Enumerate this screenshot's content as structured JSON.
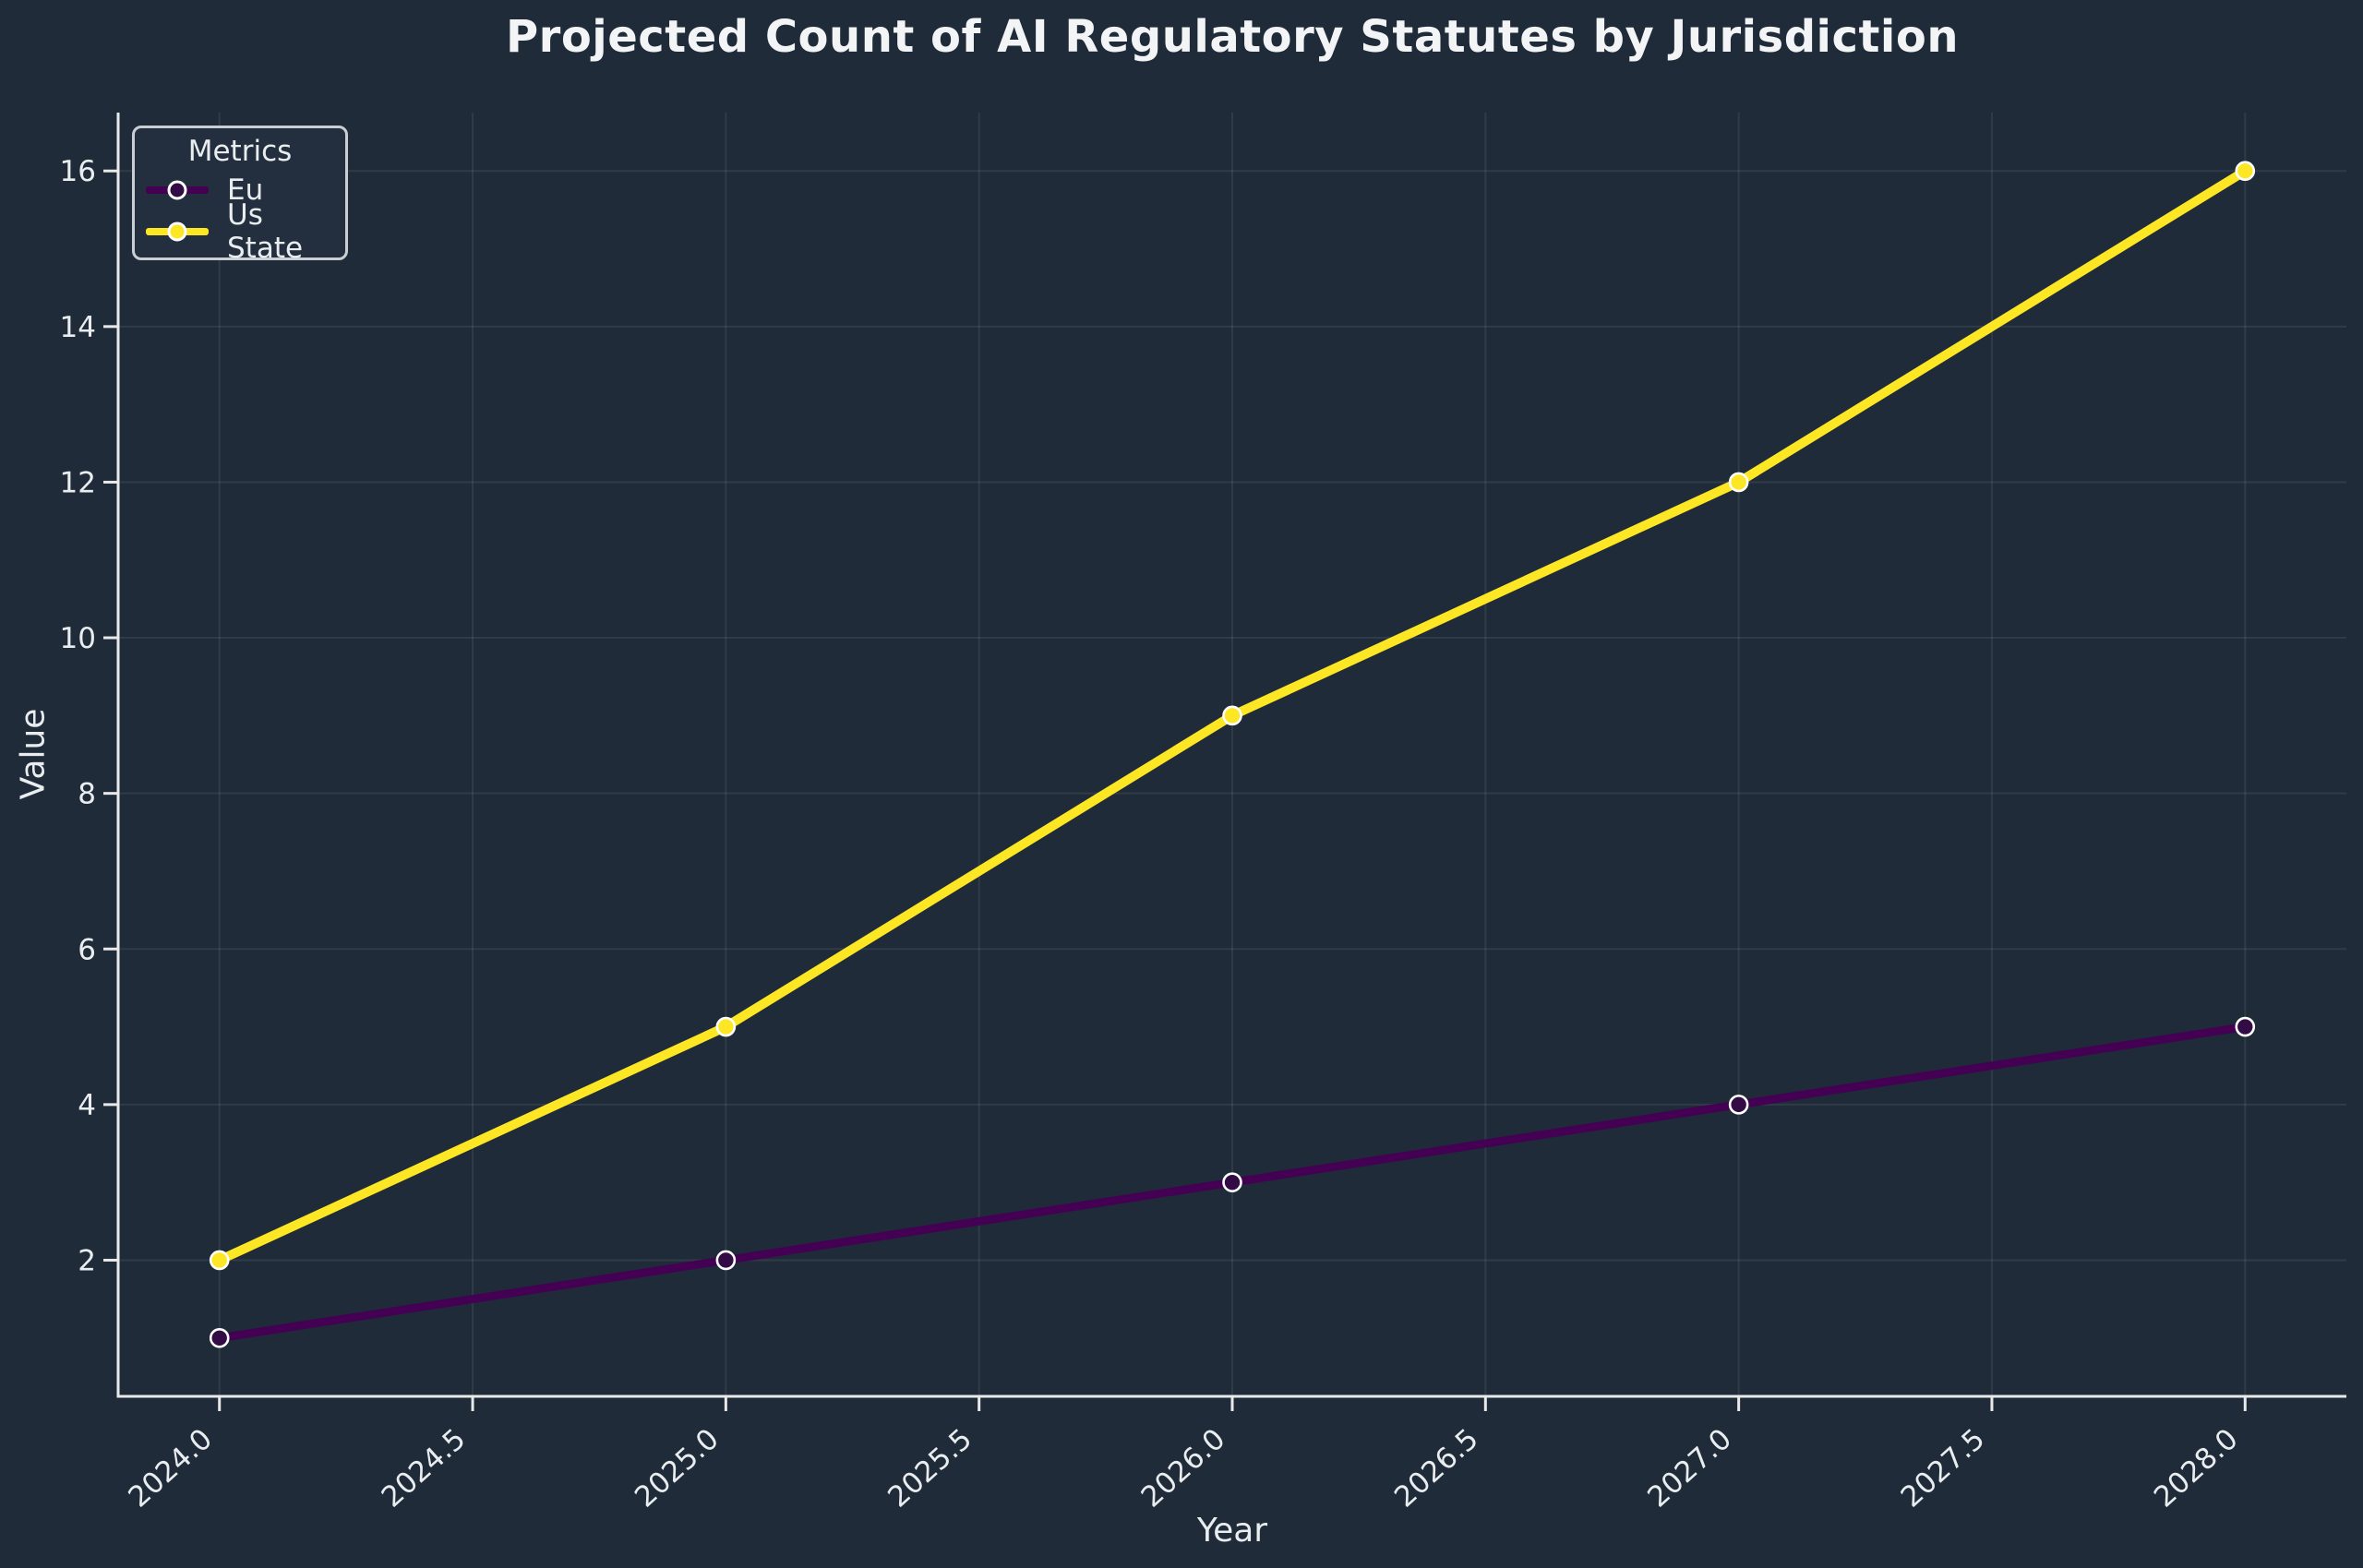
{
  "chart_data": {
    "type": "line",
    "title": "Projected Count of AI Regulatory Statutes by Jurisdiction",
    "xlabel": "Year",
    "ylabel": "Value",
    "x": [
      2024,
      2025,
      2026,
      2027,
      2028
    ],
    "series": [
      {
        "name": "Eu",
        "slug": "eu",
        "values": [
          1,
          2,
          3,
          4,
          5
        ],
        "color": "#440154",
        "marker": "circle",
        "marker_fill": "#330b45",
        "marker_edge": "#ffffff",
        "line_width": 9
      },
      {
        "name": "Us State",
        "slug": "us-state",
        "values": [
          2,
          5,
          9,
          12,
          16
        ],
        "color": "#FDE725",
        "marker": "circle",
        "marker_fill": "#FDE725",
        "marker_edge": "#ffffff",
        "line_width": 10
      }
    ],
    "xticks": [
      2024,
      2024.5,
      2025,
      2025.5,
      2026,
      2026.5,
      2027,
      2027.5,
      2028
    ],
    "xtick_labels": [
      "2024.0",
      "2024.5",
      "2025.0",
      "2025.5",
      "2026.0",
      "2026.5",
      "2027.0",
      "2027.5",
      "2028.0"
    ],
    "yticks": [
      2,
      4,
      6,
      8,
      10,
      12,
      14,
      16
    ],
    "ytick_labels": [
      "2",
      "4",
      "6",
      "8",
      "10",
      "12",
      "14",
      "16"
    ],
    "xlim": [
      2023.8,
      2028.2
    ],
    "ylim": [
      0.25,
      16.75
    ],
    "grid": true,
    "legend": {
      "title": "Metrics",
      "position": "upper left"
    }
  },
  "style": {
    "background": "#1f2b39",
    "title_color": "#f2f4f6",
    "text": "#e9edf0",
    "axis": "#e9e9e9",
    "grid_line": "rgba(255,255,255,0.08)",
    "legend_border": "#c9ced4",
    "legend_background": "#232f3e",
    "marker_edge": "#ffffff"
  }
}
